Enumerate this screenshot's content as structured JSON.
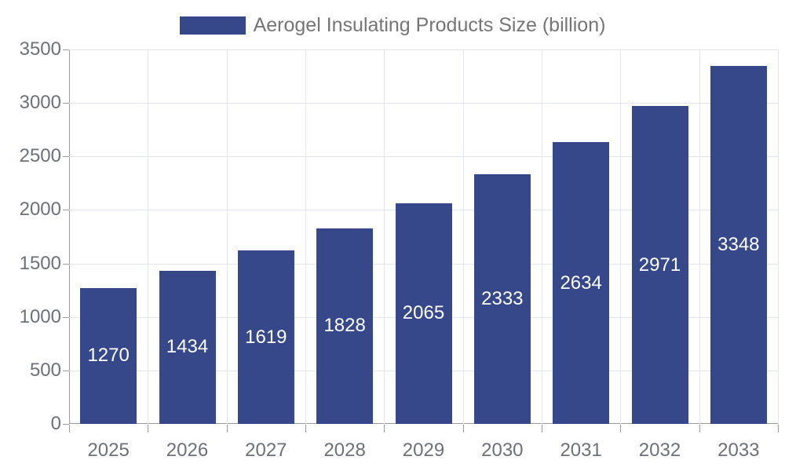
{
  "chart_data": {
    "type": "bar",
    "title": "Aerogel Insulating Products Size (billion)",
    "categories": [
      "2025",
      "2026",
      "2027",
      "2028",
      "2029",
      "2030",
      "2031",
      "2032",
      "2033"
    ],
    "values": [
      1270,
      1434,
      1619,
      1828,
      2065,
      2333,
      2634,
      2971,
      3348
    ],
    "xlabel": "",
    "ylabel": "",
    "ylim": [
      0,
      3500
    ],
    "ytick_step": 500,
    "grid": true,
    "legend_position": "top-center",
    "value_labels": "inside-center",
    "colors": {
      "bar": "#36488A",
      "axis_line": "#999999",
      "grid_line": "#E3E6EC",
      "tick_label": "#6E7079",
      "legend_text": "#757575",
      "value_label": "#FFFFFF",
      "background": "#FFFFFF"
    }
  }
}
